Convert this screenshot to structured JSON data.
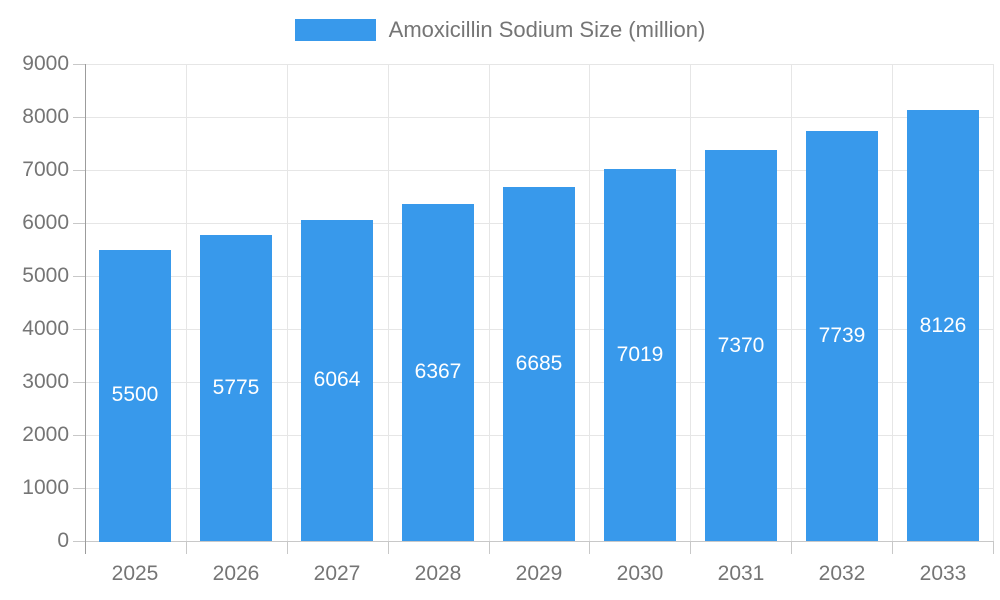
{
  "legend": {
    "label": "Amoxicillin Sodium Size (million)"
  },
  "chart_data": {
    "type": "bar",
    "title": "Amoxicillin Sodium Size (million)",
    "categories": [
      "2025",
      "2026",
      "2027",
      "2028",
      "2029",
      "2030",
      "2031",
      "2032",
      "2033"
    ],
    "values": [
      5500,
      5775,
      6064,
      6367,
      6685,
      7019,
      7370,
      7739,
      8126
    ],
    "xlabel": "",
    "ylabel": "",
    "ylim": [
      0,
      9000
    ],
    "ytick_step": 1000,
    "grid": true,
    "legend_position": "top",
    "bar_color": "#3899EB",
    "value_label_color": "#FFFFFF",
    "axis_text_color": "#757575",
    "gridline_color": "#E6E6E6",
    "axis_line_color": "#9C9C9C",
    "tick_color": "#C8C8C8"
  }
}
